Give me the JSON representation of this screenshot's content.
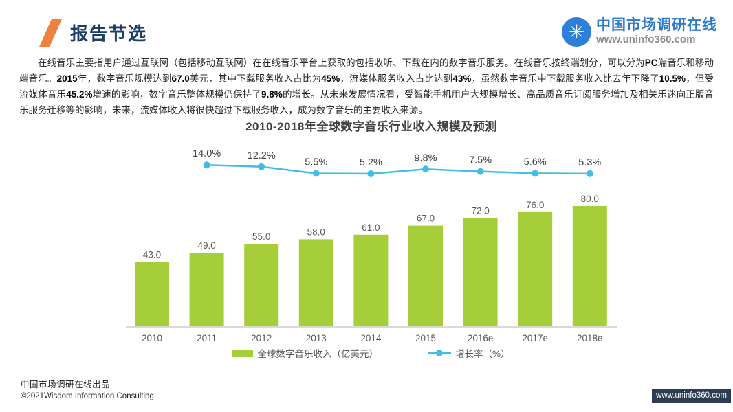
{
  "header": {
    "title": "报告节选",
    "logo": {
      "icon": "compass-arrows-icon",
      "glyph": "✳",
      "name": "中国市场调研在线",
      "url": "www.uninfo360.com"
    }
  },
  "excerpt": {
    "segments": [
      {
        "text": "在线音乐主要指用户通过互联网（包括移动互联网）在在线音乐平台上获取的包括收听、下载在内的数字音乐服务。在线音乐按终端划分，可以分为",
        "bold": false
      },
      {
        "text": "PC",
        "bold": true
      },
      {
        "text": "端音乐和移动端音乐。",
        "bold": false
      },
      {
        "text": "2015",
        "bold": true
      },
      {
        "text": "年，数字音乐规模达到",
        "bold": false
      },
      {
        "text": "67.0",
        "bold": true
      },
      {
        "text": "美元，其中下载服务收入占比为",
        "bold": false
      },
      {
        "text": "45%",
        "bold": true
      },
      {
        "text": "，流媒体服务收入占比达到",
        "bold": false
      },
      {
        "text": "43%",
        "bold": true
      },
      {
        "text": "，虽然数字音乐中下载服务收入比去年下降了",
        "bold": false
      },
      {
        "text": "10.5%",
        "bold": true
      },
      {
        "text": "，但受流媒体音乐",
        "bold": false
      },
      {
        "text": "45.2%",
        "bold": true
      },
      {
        "text": "增速的影响，数字音乐整体规模仍保持了",
        "bold": false
      },
      {
        "text": "9.8%",
        "bold": true
      },
      {
        "text": "的增长。从未来发展情况看，受智能手机用户大规模增长、高品质音乐订阅服务增加及相关乐迷向正版音乐服务迁移等的影响，未来，流媒体收入将很快超过下载服务收入，成为数字音乐的主要收入来源。",
        "bold": false
      }
    ]
  },
  "chart_data": {
    "type": "bar",
    "title": "2010-2018年全球数字音乐行业收入规模及预测",
    "categories": [
      "2010",
      "2011",
      "2012",
      "2013",
      "2014",
      "2015",
      "2016e",
      "2017e",
      "2018e"
    ],
    "series": [
      {
        "name": "全球数字音乐收入（亿美元）",
        "type": "bar",
        "color": "#A6CE39",
        "values": [
          43.0,
          49.0,
          55.0,
          58.0,
          61.0,
          67.0,
          72.0,
          76.0,
          80.0
        ]
      },
      {
        "name": "增长率（%）",
        "type": "line",
        "color": "#41BEE8",
        "values": [
          null,
          14.0,
          12.2,
          5.5,
          5.2,
          9.8,
          7.5,
          5.6,
          5.3
        ]
      }
    ],
    "xlabel": "",
    "ylabel": "",
    "ylim": [
      0,
      90
    ],
    "grid": false,
    "legend_position": "bottom",
    "value_labels_shown": true
  },
  "footer": {
    "brand_line": "中国市场调研在线出品",
    "copyright": "©2021Wisdom Information Consulting",
    "badge_url": "www.uninfo360.com"
  },
  "colors": {
    "accent_orange": "#F0813C",
    "title_navy": "#1C3E66",
    "logo_blue": "#2E79C9",
    "bar_green": "#A6CE39",
    "line_blue": "#41BEE8",
    "axis_gray": "#D9D9D9",
    "label_gray": "#595959",
    "badge_navy": "#2C3C52"
  }
}
